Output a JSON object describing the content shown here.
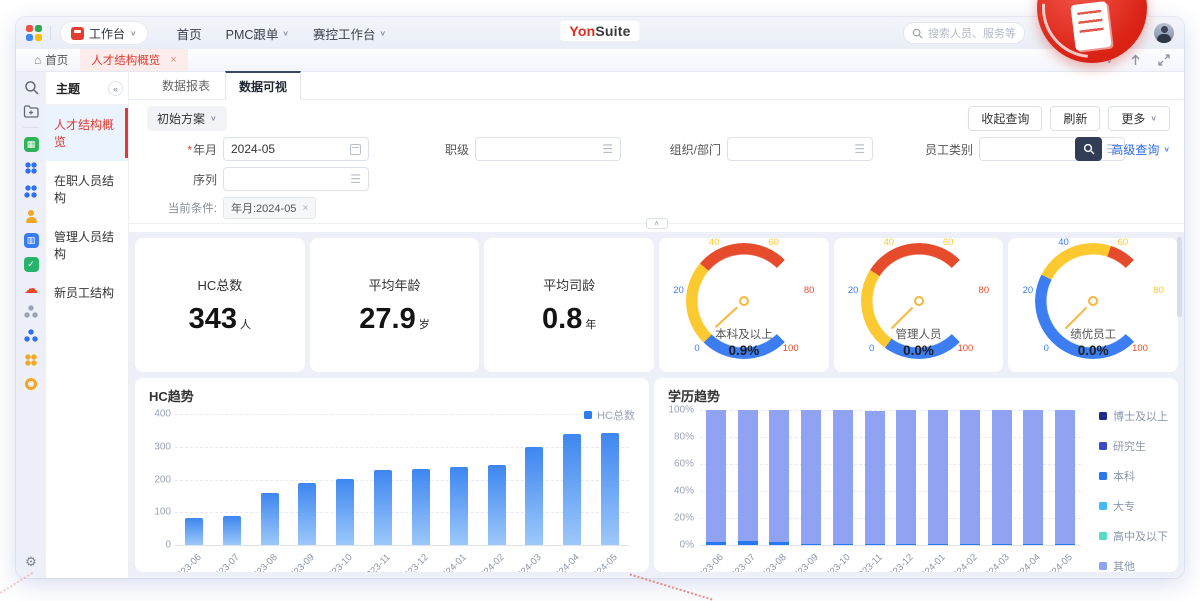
{
  "topbar": {
    "workspace_label": "工作台",
    "nav": {
      "home": "首页",
      "pmc": "PMC跟单",
      "console": "赛控工作台"
    },
    "brand": {
      "yon": "Yon",
      "suite": "Suite"
    },
    "search_placeholder": "搜索人员、服务等"
  },
  "tabstrip": {
    "home_label": "首页",
    "doc_tab_label": "人才结构概览"
  },
  "theme_panel": {
    "title": "主题",
    "items": [
      {
        "label": "人才结构概览",
        "active": true
      },
      {
        "label": "在职人员结构",
        "active": false
      },
      {
        "label": "管理人员结构",
        "active": false
      },
      {
        "label": "新员工结构",
        "active": false
      }
    ]
  },
  "main_tabs": {
    "report": "数据报表",
    "visual": "数据可视"
  },
  "toolbar": {
    "scheme": "初始方案",
    "collapse_query": "收起查询",
    "refresh": "刷新",
    "more": "更多"
  },
  "filters": {
    "required_mark": "*",
    "year_month_label": "年月",
    "year_month_value": "2024-05",
    "rank_label": "职级",
    "org_label": "组织/部门",
    "emp_type_label": "员工类别",
    "sequence_label": "序列",
    "current_condition_label": "当前条件:",
    "condition_tag": "年月:2024-05",
    "advanced_query": "高级查询"
  },
  "kpis": [
    {
      "label": "HC总数",
      "value": "343",
      "unit": "人"
    },
    {
      "label": "平均年龄",
      "value": "27.9",
      "unit": "岁"
    },
    {
      "label": "平均司龄",
      "value": "0.8",
      "unit": "年"
    }
  ],
  "chart_data": [
    {
      "type": "gauge",
      "title": "本科及以上",
      "value": 0.9,
      "value_label": "0.9%",
      "min": 0,
      "max": 100,
      "ticks": [
        0,
        20,
        40,
        60,
        80,
        100
      ],
      "segments": [
        {
          "to": 33
        },
        {
          "to": 65
        },
        {
          "to": 100
        }
      ],
      "palette": [
        "#3c7df1",
        "#fcc930",
        "#e64b2b"
      ],
      "needle_color": "#f8b63c"
    },
    {
      "type": "gauge",
      "title": "管理人员",
      "value": 0.0,
      "value_label": "0.0%",
      "min": 0,
      "max": 100,
      "ticks": [
        0,
        20,
        40,
        60,
        80,
        100
      ],
      "segments": [
        {
          "to": 30
        },
        {
          "to": 62
        },
        {
          "to": 100
        }
      ],
      "palette": [
        "#3c7df1",
        "#fcc930",
        "#e64b2b"
      ],
      "needle_color": "#f8b63c"
    },
    {
      "type": "gauge",
      "title": "绩优员工",
      "value": 0.0,
      "value_label": "0.0%",
      "min": 0,
      "max": 100,
      "ticks": [
        0,
        20,
        40,
        60,
        80,
        100
      ],
      "segments": [
        {
          "to": 60
        },
        {
          "to": 90
        },
        {
          "to": 100
        }
      ],
      "palette": [
        "#3c7df1",
        "#fcc930",
        "#e64b2b"
      ],
      "needle_color": "#f8b63c"
    },
    {
      "type": "bar",
      "title": "HC趋势",
      "legend": [
        {
          "name": "HC总数",
          "color": "#2f7cf0"
        }
      ],
      "categories": [
        "2023-06",
        "2023-07",
        "2023-08",
        "2023-09",
        "2023-10",
        "2023-11",
        "2023-12",
        "2024-01",
        "2024-02",
        "2024-03",
        "2024-04",
        "2024-05"
      ],
      "values": [
        83,
        88,
        160,
        188,
        203,
        228,
        232,
        238,
        245,
        300,
        338,
        343
      ],
      "ylim": [
        0,
        400
      ],
      "yticks": [
        0,
        100,
        200,
        300,
        400
      ],
      "bar_gradient": [
        "#3e86f0",
        "#9cc8fa"
      ],
      "grid": "dashed",
      "legend_position": "top-right"
    },
    {
      "type": "bar",
      "subtype": "stacked-percent",
      "title": "学历趋势",
      "legend": [
        {
          "name": "博士及以上",
          "color": "#1f2d8a"
        },
        {
          "name": "研究生",
          "color": "#3d4cc3"
        },
        {
          "name": "本科",
          "color": "#2878f0"
        },
        {
          "name": "大专",
          "color": "#45b9f5"
        },
        {
          "name": "高中及以下",
          "color": "#57dcc4"
        },
        {
          "name": "其他",
          "color": "#8fa3f2"
        }
      ],
      "categories": [
        "2023-06",
        "2023-07",
        "2023-08",
        "2023-09",
        "2023-10",
        "2023-11",
        "2023-12",
        "2024-01",
        "2024-02",
        "2024-03",
        "2024-04",
        "2024-05"
      ],
      "series": [
        {
          "name": "本科",
          "color": "#2878f0",
          "values": [
            2,
            3,
            2,
            1,
            1,
            1,
            1,
            1,
            1,
            1,
            1,
            1
          ]
        },
        {
          "name": "其他",
          "color": "#8fa3f2",
          "values": [
            98,
            97,
            98,
            99,
            99,
            98,
            99,
            99,
            99,
            99,
            99,
            99
          ]
        }
      ],
      "ylim": [
        0,
        100
      ],
      "ytick_labels": [
        "0%",
        "20%",
        "40%",
        "60%",
        "80%",
        "100%"
      ],
      "grid": "dashed",
      "legend_position": "right"
    }
  ]
}
